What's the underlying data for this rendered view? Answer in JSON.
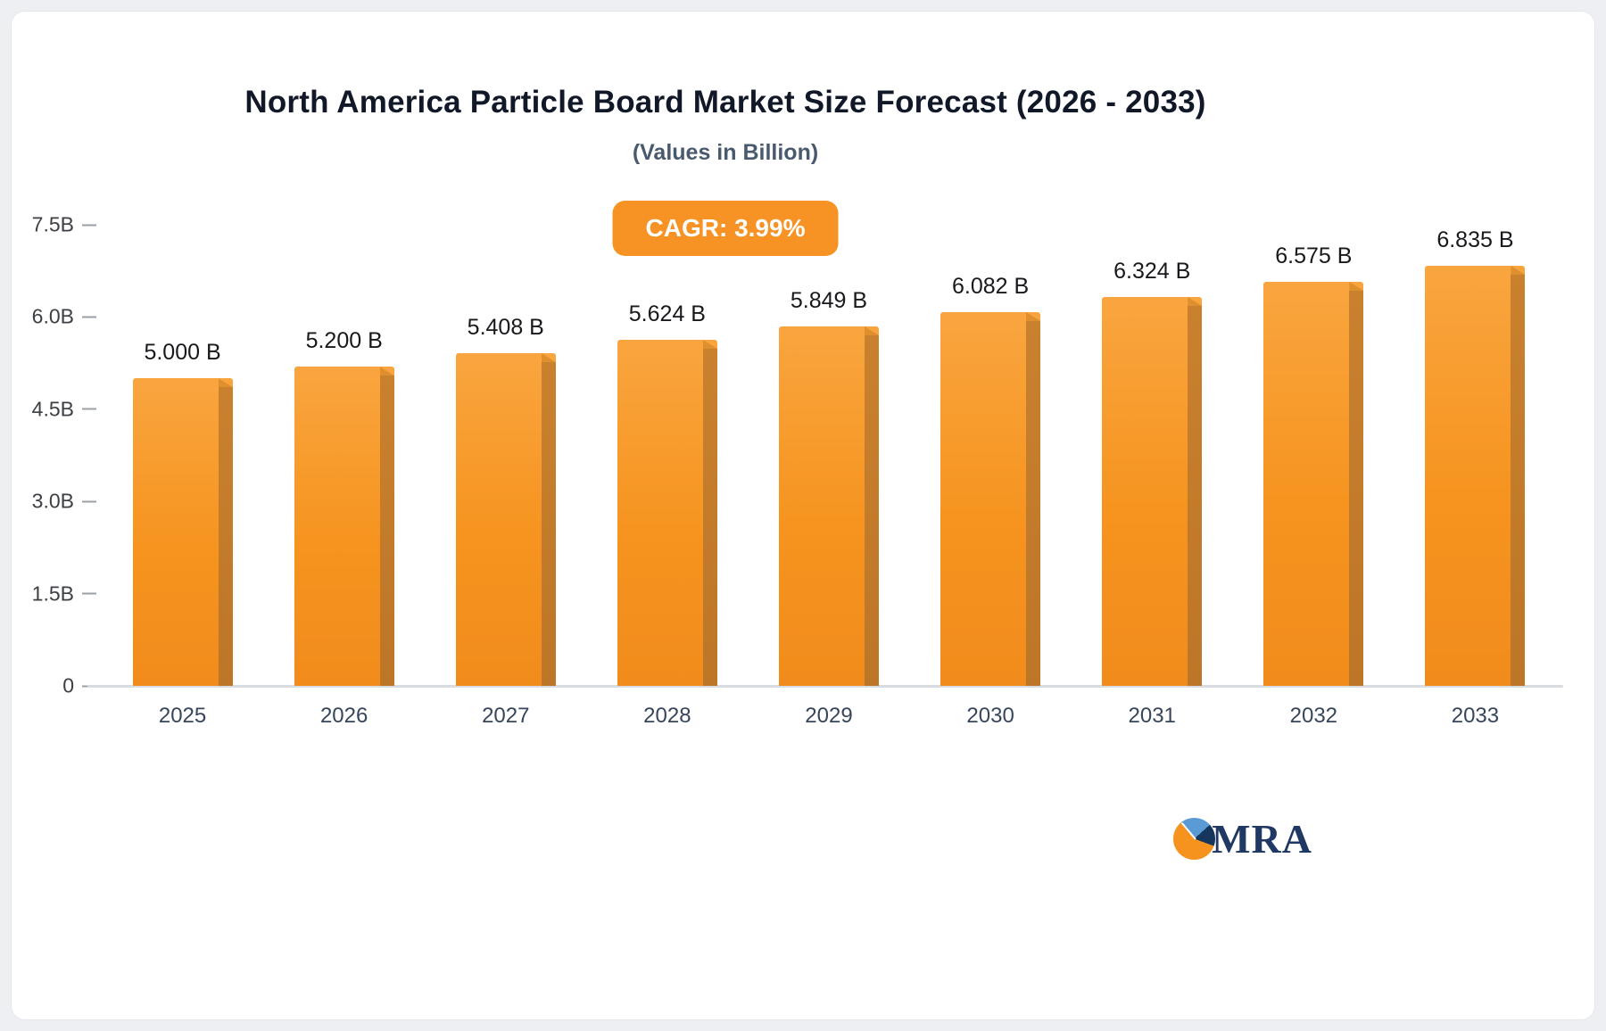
{
  "header": {
    "title": "North America Particle Board Market Size Forecast (2026 - 2033)",
    "subtitle": "(Values in Billion)",
    "cagr_badge": "CAGR: 3.99%"
  },
  "logo": {
    "text": "MRA",
    "icon": "pie-chart-icon"
  },
  "colors": {
    "bar_main": "#f6941f",
    "bar_side": "#c9812e",
    "badge_background": "#f79324",
    "logo_navy": "#1f3864",
    "logo_blue": "#5b9bd5",
    "logo_orange": "#f6921e"
  },
  "chart_data": {
    "type": "bar",
    "title": "North America Particle Board Market Size Forecast (2026 - 2033)",
    "subtitle": "(Values in Billion)",
    "annotation": "CAGR: 3.99%",
    "categories": [
      "2025",
      "2026",
      "2027",
      "2028",
      "2029",
      "2030",
      "2031",
      "2032",
      "2033"
    ],
    "values": [
      5.0,
      5.2,
      5.408,
      5.624,
      5.849,
      6.082,
      6.324,
      6.575,
      6.835
    ],
    "value_labels": [
      "5.000 B",
      "5.200 B",
      "5.408 B",
      "5.624 B",
      "5.849 B",
      "6.082 B",
      "6.324 B",
      "6.575 B",
      "6.835 B"
    ],
    "xlabel": "",
    "ylabel": "",
    "ylim": [
      0,
      7.5
    ],
    "yticks": [
      {
        "label": "0",
        "value": 0
      },
      {
        "label": "1.5B",
        "value": 1.5
      },
      {
        "label": "3.0B",
        "value": 3.0
      },
      {
        "label": "4.5B",
        "value": 4.5
      },
      {
        "label": "6.0B",
        "value": 6.0
      },
      {
        "label": "7.5B",
        "value": 7.5
      }
    ],
    "grid": false,
    "legend": false
  }
}
